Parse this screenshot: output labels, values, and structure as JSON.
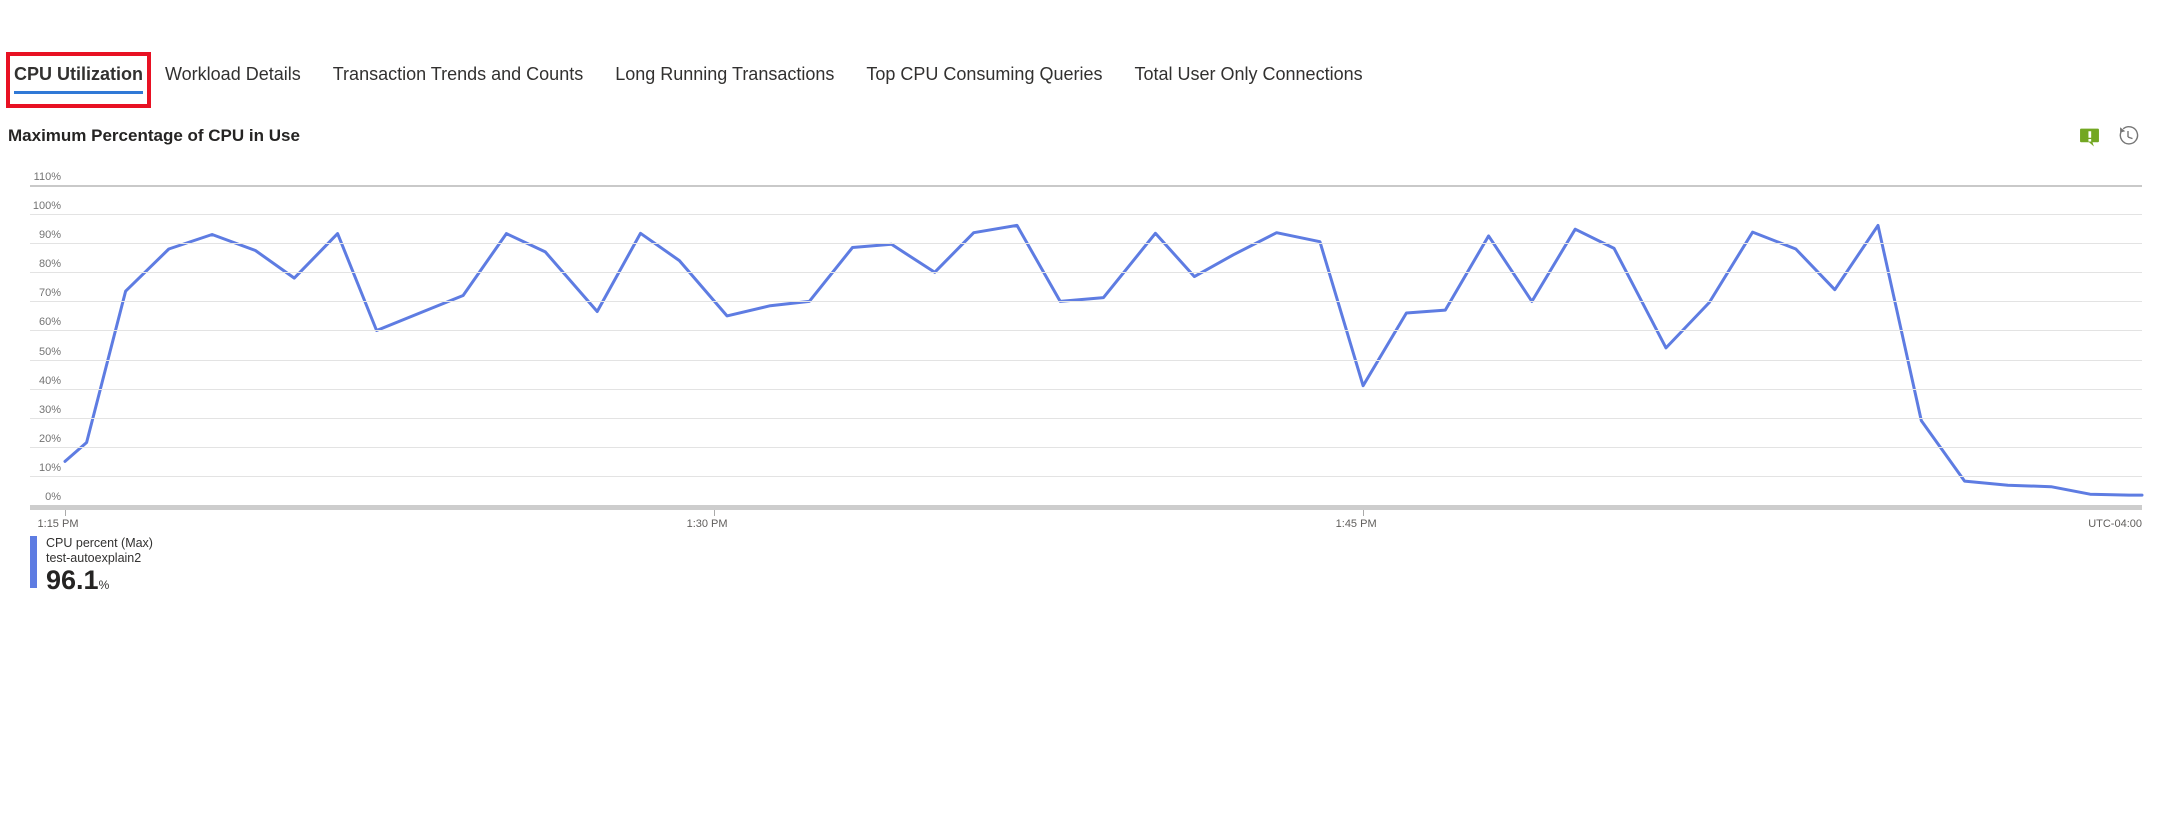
{
  "tabs": {
    "items": [
      {
        "label": "CPU Utilization",
        "active": true,
        "annotated": true
      },
      {
        "label": "Workload Details",
        "active": false
      },
      {
        "label": "Transaction Trends and Counts",
        "active": false
      },
      {
        "label": "Long Running Transactions",
        "active": false
      },
      {
        "label": "Top CPU Consuming Queries",
        "active": false
      },
      {
        "label": "Total User Only Connections",
        "active": false
      }
    ]
  },
  "chart_header": {
    "title": "Maximum Percentage of CPU in Use",
    "icons": [
      {
        "name": "feedback-icon",
        "color": "#73a722"
      },
      {
        "name": "history-icon",
        "color": "#767676"
      }
    ]
  },
  "legend": {
    "metric": "CPU percent (Max)",
    "resource": "test-autoexplain2",
    "value": "96.1",
    "unit": "%"
  },
  "colors": {
    "line": "#5e7ce2",
    "legend_bar": "#5e7ce2",
    "active_tab_underline": "#3079d6",
    "annotation_red": "#e81123",
    "grid": "#e3e3e3",
    "axis": "#cdcdcd"
  },
  "chart_data": {
    "type": "line",
    "title": "Maximum Percentage of CPU in Use",
    "ylabel": "CPU percent",
    "ylim": [
      0,
      110
    ],
    "y_ticks": [
      "0%",
      "10%",
      "20%",
      "30%",
      "40%",
      "50%",
      "60%",
      "70%",
      "80%",
      "90%",
      "100%",
      "110%"
    ],
    "x_range_minutes": [
      0,
      48
    ],
    "x_ticks": [
      "1:15 PM",
      "1:30 PM",
      "1:45 PM"
    ],
    "x_tick_minutes": [
      0,
      15,
      30
    ],
    "timezone_label": "UTC-04:00",
    "grid": true,
    "legend_position": "bottom-left",
    "max_value_pct": 96.1,
    "series": [
      {
        "name": "CPU percent (Max)",
        "resource": "test-autoexplain2",
        "points_minutes_pct": [
          [
            0,
            15
          ],
          [
            0.5,
            21.5
          ],
          [
            1.4,
            73.5
          ],
          [
            2.4,
            88
          ],
          [
            3.4,
            93
          ],
          [
            4.4,
            87.5
          ],
          [
            5.3,
            78
          ],
          [
            6.3,
            93.3
          ],
          [
            7.2,
            60
          ],
          [
            8.2,
            66
          ],
          [
            9.2,
            72
          ],
          [
            10.2,
            93.3
          ],
          [
            11.1,
            87
          ],
          [
            12.3,
            66.5
          ],
          [
            13.3,
            93.4
          ],
          [
            14.2,
            84
          ],
          [
            15.3,
            65
          ],
          [
            16.3,
            68.5
          ],
          [
            17.2,
            70
          ],
          [
            18.2,
            88.5
          ],
          [
            19.1,
            89.6
          ],
          [
            20.1,
            80
          ],
          [
            21,
            93.6
          ],
          [
            22,
            96.1
          ],
          [
            23,
            70
          ],
          [
            24,
            71.3
          ],
          [
            25.2,
            93.4
          ],
          [
            26.1,
            78.5
          ],
          [
            27,
            86
          ],
          [
            28,
            93.6
          ],
          [
            29,
            90.5
          ],
          [
            30,
            41
          ],
          [
            31,
            66
          ],
          [
            31.9,
            67
          ],
          [
            32.9,
            92.5
          ],
          [
            33.9,
            70
          ],
          [
            34.9,
            94.8
          ],
          [
            35.8,
            88.2
          ],
          [
            37,
            54
          ],
          [
            38,
            69.6
          ],
          [
            39,
            93.8
          ],
          [
            40,
            88
          ],
          [
            40.9,
            74
          ],
          [
            41.9,
            96.1
          ],
          [
            42.9,
            29
          ],
          [
            43.9,
            8.2
          ],
          [
            44.9,
            6.8
          ],
          [
            45.9,
            6.3
          ],
          [
            46.8,
            3.7
          ],
          [
            47.7,
            3.4
          ],
          [
            48,
            3.4
          ]
        ]
      }
    ]
  }
}
